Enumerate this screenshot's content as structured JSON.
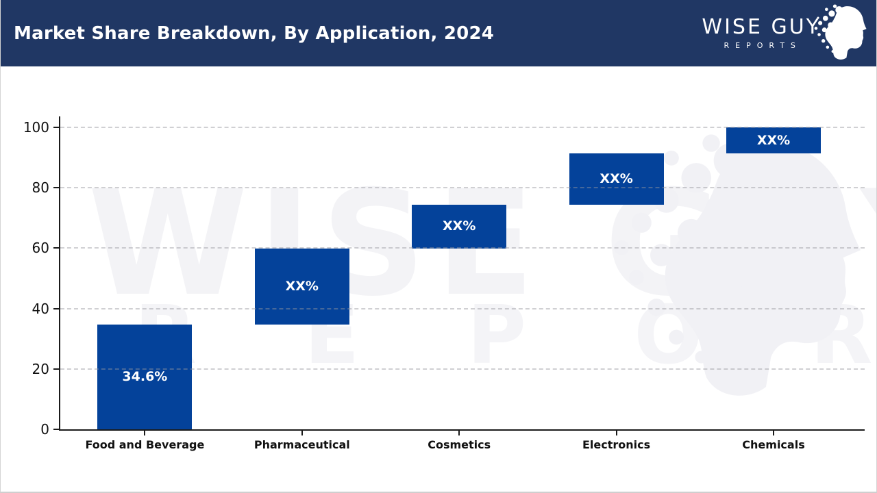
{
  "header": {
    "title": "Market Share Breakdown, By Application, 2024",
    "logo": {
      "name": "WISE GUY",
      "sub": "REPORTS"
    }
  },
  "watermark": {
    "name": "WISE GUY",
    "sub": "R E P O R T S"
  },
  "chart_data": {
    "type": "bar",
    "subtype": "waterfall",
    "title": "Market Share Breakdown, By Application, 2024",
    "xlabel": "",
    "ylabel": "",
    "ylim": [
      0,
      103.6
    ],
    "yticks": [
      0,
      20,
      40,
      60,
      80,
      100
    ],
    "grid": "horizontal-dashed",
    "legend": "none",
    "bar_color": "#04429a",
    "value_label_color": "#ffffff",
    "categories": [
      "Food and Beverage",
      "Pharmaceutical",
      "Cosmetics",
      "Electronics",
      "Chemicals"
    ],
    "segments": [
      {
        "category": "Food and Beverage",
        "start": 0,
        "end": 34.6,
        "value_label": "34.6%",
        "value": 34.6
      },
      {
        "category": "Pharmaceutical",
        "start": 34.6,
        "end": 59.9,
        "value_label": "XX%"
      },
      {
        "category": "Cosmetics",
        "start": 59.9,
        "end": 74.3,
        "value_label": "XX%"
      },
      {
        "category": "Electronics",
        "start": 74.3,
        "end": 91.3,
        "value_label": "XX%"
      },
      {
        "category": "Chemicals",
        "start": 91.3,
        "end": 100,
        "value_label": "XX%"
      }
    ]
  }
}
